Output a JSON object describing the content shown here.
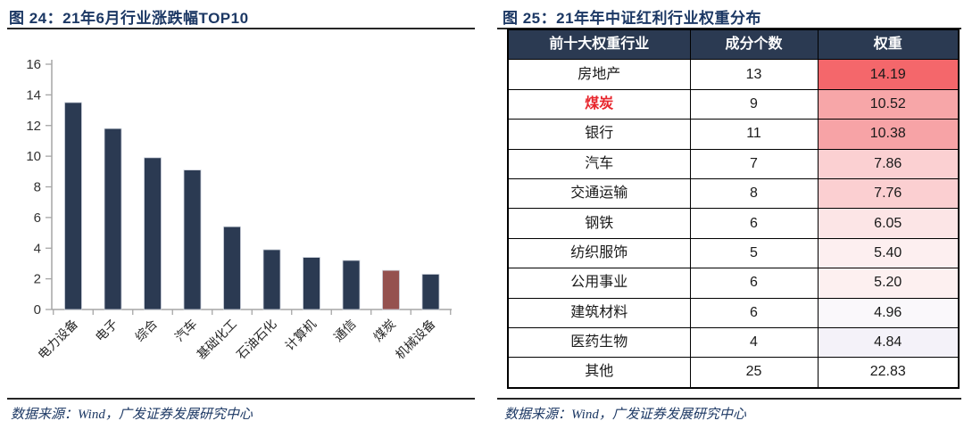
{
  "left_panel": {
    "title": "图 24：21年6月行业涨跌幅TOP10",
    "source": "数据来源：Wind，广发证券发展研究中心"
  },
  "right_panel": {
    "title": "图 25：21年年中证红利行业权重分布",
    "source": "数据来源：Wind，广发证券发展研究中心",
    "table": {
      "headers": [
        "前十大权重行业",
        "成分个数",
        "权重"
      ],
      "header_bg": "#2b3a52",
      "header_text_color": "#ffffff",
      "highlight_text_color": "#e8262d",
      "rows": [
        {
          "industry": "房地产",
          "count": "13",
          "weight": "14.19",
          "weight_bg": "#f4676b",
          "highlight": false
        },
        {
          "industry": "煤炭",
          "count": "9",
          "weight": "10.52",
          "weight_bg": "#f7a6a8",
          "highlight": true
        },
        {
          "industry": "银行",
          "count": "11",
          "weight": "10.38",
          "weight_bg": "#f7a3a6",
          "highlight": false
        },
        {
          "industry": "汽车",
          "count": "7",
          "weight": "7.86",
          "weight_bg": "#fbd0d2",
          "highlight": false
        },
        {
          "industry": "交通运输",
          "count": "8",
          "weight": "7.76",
          "weight_bg": "#fbcfd1",
          "highlight": false
        },
        {
          "industry": "钢铁",
          "count": "6",
          "weight": "6.05",
          "weight_bg": "#fce5e6",
          "highlight": false
        },
        {
          "industry": "纺织服饰",
          "count": "5",
          "weight": "5.40",
          "weight_bg": "#fdeff0",
          "highlight": false
        },
        {
          "industry": "公用事业",
          "count": "6",
          "weight": "5.20",
          "weight_bg": "#fdf0f0",
          "highlight": false
        },
        {
          "industry": "建筑材料",
          "count": "6",
          "weight": "4.96",
          "weight_bg": "#faf8fb",
          "highlight": false
        },
        {
          "industry": "医药生物",
          "count": "4",
          "weight": "4.84",
          "weight_bg": "#f4f2f9",
          "highlight": false
        },
        {
          "industry": "其他",
          "count": "25",
          "weight": "22.83",
          "weight_bg": "#ffffff",
          "highlight": false
        }
      ]
    }
  },
  "chart_data": {
    "type": "bar",
    "title": "21年6月行业涨跌幅TOP10",
    "categories": [
      "电力设备",
      "电子",
      "综合",
      "汽车",
      "基础化工",
      "石油石化",
      "计算机",
      "通信",
      "煤炭",
      "机械设备"
    ],
    "values": [
      13.5,
      11.8,
      9.9,
      9.1,
      5.4,
      3.9,
      3.4,
      3.2,
      2.55,
      2.3
    ],
    "xlabel": "",
    "ylabel": "",
    "ylim": [
      0,
      16
    ],
    "ytick_step": 2,
    "grid": false,
    "legend": "none",
    "bar_color": "#2b3a52",
    "bar_border_color": "#cdd3dc",
    "highlight_index": 8,
    "highlight_color": "#95514f",
    "axis_color": "#a6a6a6",
    "tick_label_color": "#333333"
  }
}
